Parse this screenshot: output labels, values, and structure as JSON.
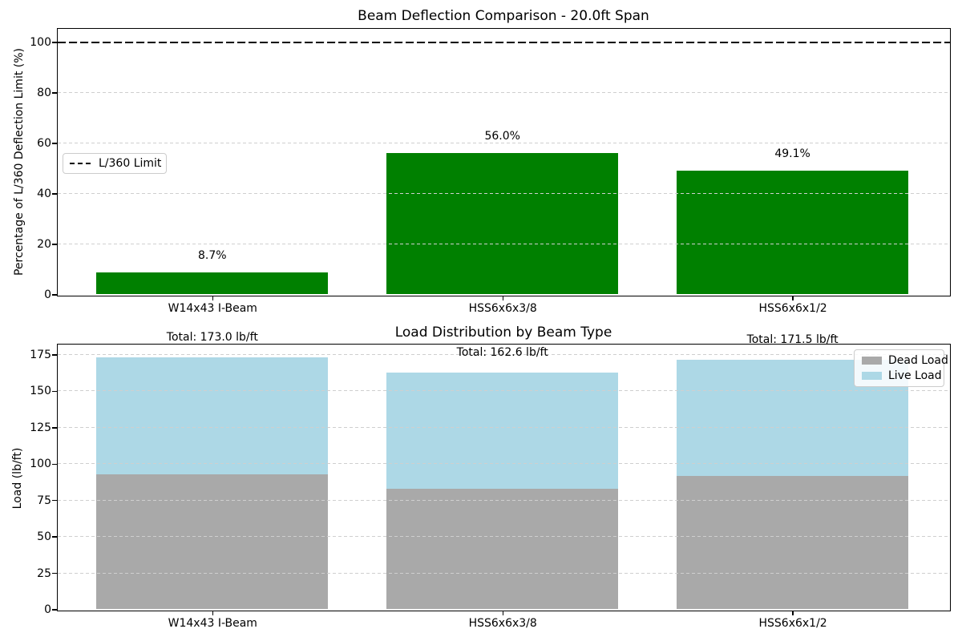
{
  "chart_data": [
    {
      "type": "bar",
      "title": "Beam Deflection Comparison - 20.0ft Span",
      "ylabel": "Percentage of L/360 Deflection Limit (%)",
      "categories": [
        "W14x43 I-Beam",
        "HSS6x6x3/8",
        "HSS6x6x1/2"
      ],
      "values": [
        8.7,
        56.0,
        49.1
      ],
      "bar_labels": [
        "8.7%",
        "56.0%",
        "49.1%"
      ],
      "bar_color": "#008000",
      "yticks": [
        0,
        20,
        40,
        60,
        80,
        100
      ],
      "ylim": [
        0,
        105.4
      ],
      "grid": "dashed-horizontal",
      "ref_line": {
        "y": 100,
        "style": "dashed",
        "color": "#000000",
        "label": "L/360 Limit"
      },
      "legend_position": "center-left"
    },
    {
      "type": "stacked-bar",
      "title": "Load Distribution by Beam Type",
      "ylabel": "Load (lb/ft)",
      "categories": [
        "W14x43 I-Beam",
        "HSS6x6x3/8",
        "HSS6x6x1/2"
      ],
      "series": [
        {
          "name": "Dead Load",
          "values": [
            93.0,
            82.6,
            91.5
          ],
          "color": "#a9a9a9"
        },
        {
          "name": "Live Load",
          "values": [
            80.0,
            80.0,
            80.0
          ],
          "color": "#add8e6"
        }
      ],
      "totals": [
        173.0,
        162.6,
        171.5
      ],
      "total_labels": [
        "Total: 173.0 lb/ft",
        "Total: 162.6 lb/ft",
        "Total: 171.5 lb/ft"
      ],
      "yticks": [
        0,
        25,
        50,
        75,
        100,
        125,
        150,
        175
      ],
      "ylim": [
        0,
        182.2
      ],
      "grid": "dashed-horizontal",
      "legend_position": "top-right"
    }
  ]
}
